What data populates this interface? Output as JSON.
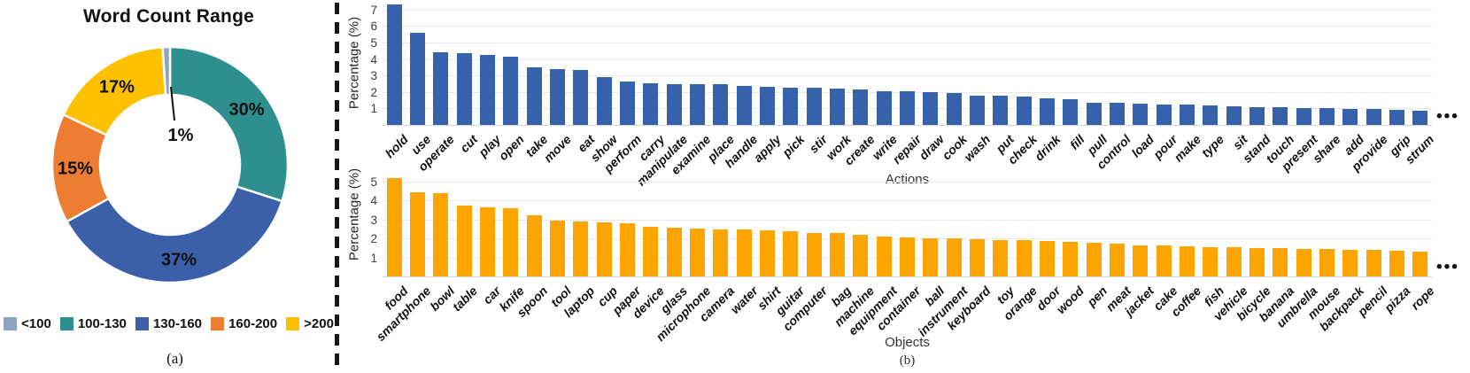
{
  "chart_data": [
    {
      "id": "word_count_donut",
      "type": "pie",
      "donut": true,
      "title": "Word Count Range",
      "caption": "(a)",
      "legend_position": "bottom",
      "labels": [
        "<100",
        "100-130",
        "130-160",
        "160-200",
        ">200"
      ],
      "values": [
        1,
        30,
        37,
        15,
        17
      ],
      "value_labels": [
        "1%",
        "30%",
        "37%",
        "15%",
        "17%"
      ],
      "colors": [
        "#8ea3bf",
        "#2e8f8f",
        "#3b5fa9",
        "#ed7d31",
        "#ffc000"
      ]
    },
    {
      "id": "actions",
      "type": "bar",
      "title": "",
      "xlabel": "Actions",
      "ylabel": "Percentage (%)",
      "caption": "",
      "ellipsis": "•••",
      "bar_color": "#3661ab",
      "grid": true,
      "yticks": [
        1,
        2,
        3,
        4,
        5,
        6,
        7
      ],
      "ylim": [
        0,
        7.6
      ],
      "categories": [
        "hold",
        "use",
        "operate",
        "cut",
        "play",
        "open",
        "take",
        "move",
        "eat",
        "show",
        "perform",
        "carry",
        "manipulate",
        "examine",
        "place",
        "handle",
        "apply",
        "pick",
        "stir",
        "work",
        "create",
        "write",
        "repair",
        "draw",
        "cook",
        "wash",
        "put",
        "check",
        "drink",
        "fill",
        "pull",
        "control",
        "load",
        "pour",
        "make",
        "type",
        "sit",
        "stand",
        "touch",
        "present",
        "share",
        "add",
        "provide",
        "grip",
        "strum"
      ],
      "values": [
        7.3,
        5.6,
        4.4,
        4.35,
        4.25,
        4.15,
        3.5,
        3.4,
        3.35,
        2.9,
        2.65,
        2.55,
        2.5,
        2.5,
        2.45,
        2.35,
        2.3,
        2.25,
        2.25,
        2.2,
        2.15,
        2.05,
        2.05,
        2.0,
        1.95,
        1.8,
        1.75,
        1.7,
        1.6,
        1.55,
        1.35,
        1.35,
        1.3,
        1.25,
        1.25,
        1.2,
        1.15,
        1.1,
        1.05,
        1.0,
        1.0,
        0.95,
        0.95,
        0.9,
        0.85
      ]
    },
    {
      "id": "objects",
      "type": "bar",
      "title": "",
      "xlabel": "Objects",
      "ylabel": "Percentage (%)",
      "caption": "(b)",
      "ellipsis": "•••",
      "bar_color": "#ffa503",
      "grid": true,
      "yticks": [
        1,
        2,
        3,
        4,
        5
      ],
      "ylim": [
        0,
        5.5
      ],
      "categories": [
        "food",
        "smartphone",
        "bowl",
        "table",
        "car",
        "knife",
        "spoon",
        "tool",
        "laptop",
        "cup",
        "paper",
        "device",
        "glass",
        "microphone",
        "camera",
        "water",
        "shirt",
        "guitar",
        "computer",
        "bag",
        "machine",
        "equipment",
        "container",
        "ball",
        "instrument",
        "keyboard",
        "toy",
        "orange",
        "door",
        "wood",
        "pen",
        "meat",
        "jacket",
        "cake",
        "coffee",
        "fish",
        "vehicle",
        "bicycle",
        "banana",
        "umbrella",
        "mouse",
        "backpack",
        "pencil",
        "pizza",
        "rope"
      ],
      "values": [
        5.15,
        4.4,
        4.35,
        3.7,
        3.65,
        3.6,
        3.2,
        2.95,
        2.9,
        2.85,
        2.8,
        2.6,
        2.55,
        2.5,
        2.45,
        2.45,
        2.4,
        2.35,
        2.3,
        2.3,
        2.2,
        2.1,
        2.05,
        2.0,
        2.0,
        1.95,
        1.9,
        1.9,
        1.85,
        1.8,
        1.75,
        1.7,
        1.65,
        1.65,
        1.6,
        1.55,
        1.55,
        1.5,
        1.5,
        1.45,
        1.45,
        1.4,
        1.4,
        1.35,
        1.3
      ]
    }
  ]
}
